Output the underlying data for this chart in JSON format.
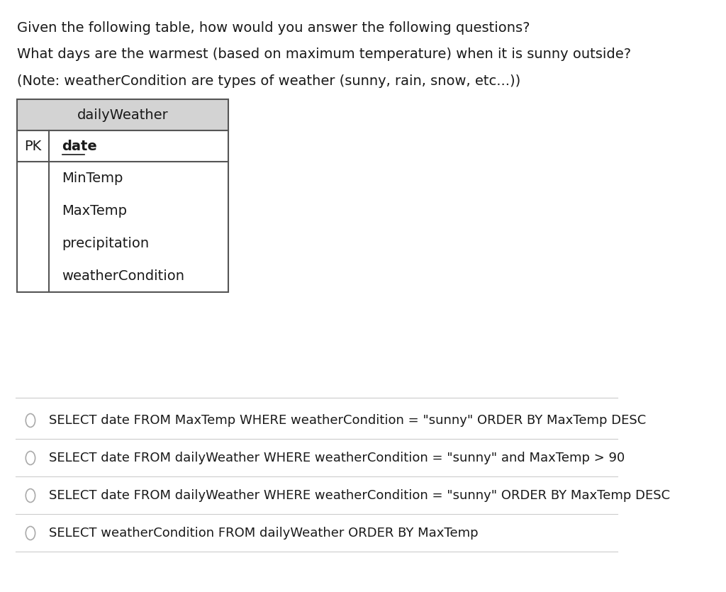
{
  "background_color": "#ffffff",
  "title_text": "Given the following table, how would you answer the following questions?",
  "question_text": "What days are the warmest (based on maximum temperature) when it is sunny outside?",
  "note_text": "(Note: weatherCondition are types of weather (sunny, rain, snow, etc...))",
  "table_title": "dailyWeather",
  "pk_label": "PK",
  "pk_field": "date",
  "fields": [
    "MinTemp",
    "MaxTemp",
    "precipitation",
    "weatherCondition"
  ],
  "options": [
    "SELECT date FROM MaxTemp WHERE weatherCondition = \"sunny\" ORDER BY MaxTemp DESC",
    "SELECT date FROM dailyWeather WHERE weatherCondition = \"sunny\" and MaxTemp > 90",
    "SELECT date FROM dailyWeather WHERE weatherCondition = \"sunny\" ORDER BY MaxTemp DESC",
    "SELECT weatherCondition FROM dailyWeather ORDER BY MaxTemp"
  ],
  "table_header_bg": "#d3d3d3",
  "table_border_color": "#555555",
  "text_color": "#1a1a1a",
  "font_family": "DejaVu Sans",
  "font_size_title": 14,
  "font_size_question": 14,
  "font_size_note": 14,
  "font_size_table": 14,
  "font_size_options": 13
}
